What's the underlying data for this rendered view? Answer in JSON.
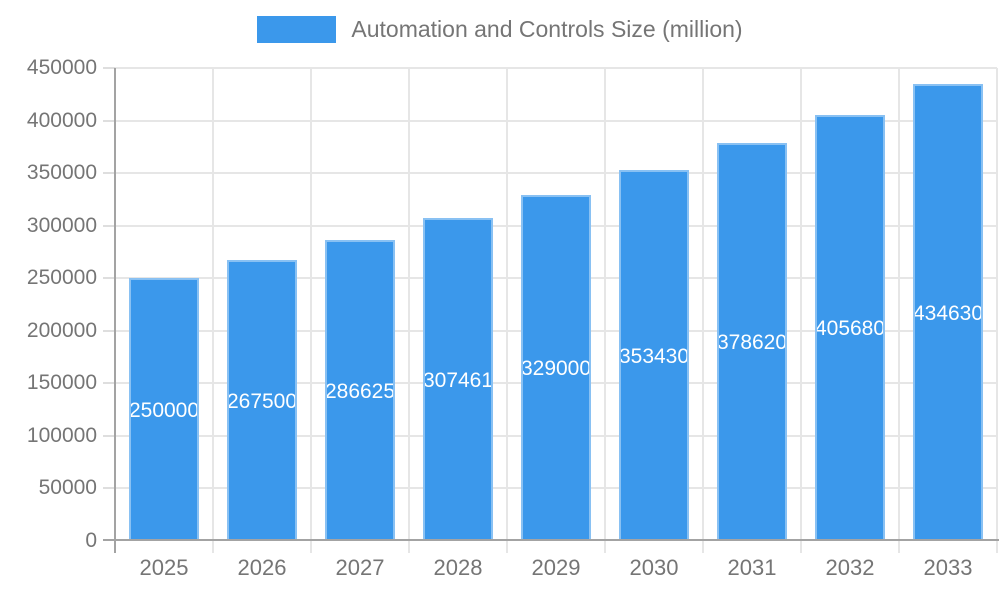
{
  "chart_data": {
    "type": "bar",
    "legend": {
      "label": "Automation and Controls Size (million)",
      "position": "top"
    },
    "categories": [
      "2025",
      "2026",
      "2027",
      "2028",
      "2029",
      "2030",
      "2031",
      "2032",
      "2033"
    ],
    "series": [
      {
        "name": "Automation and Controls Size (million)",
        "values": [
          250000,
          267500,
          286625,
          307461,
          329000,
          353430,
          378620,
          405680,
          434630
        ]
      }
    ],
    "bar_value_labels": [
      "250000",
      "267500",
      "286625",
      "307461",
      "329000",
      "353430",
      "378620",
      "405680",
      "434630"
    ],
    "xlabel": "",
    "ylabel": "",
    "ylim": [
      0,
      450000
    ],
    "ytick_step": 50000,
    "ytick_labels": [
      "0",
      "50000",
      "100000",
      "150000",
      "200000",
      "250000",
      "300000",
      "350000",
      "400000",
      "450000"
    ],
    "grid": true,
    "value_labels_inside_bars": true
  },
  "colors": {
    "bar_fill": "#3B98EB",
    "bar_border": "rgba(255,255,255,0.4)",
    "bar_label_text": "#ffffff",
    "gridline": "#e6e6e6",
    "tick_stub": "#dedede",
    "axis_line": "#a3a3a3",
    "axis_text": "#757575",
    "background": "#ffffff"
  }
}
